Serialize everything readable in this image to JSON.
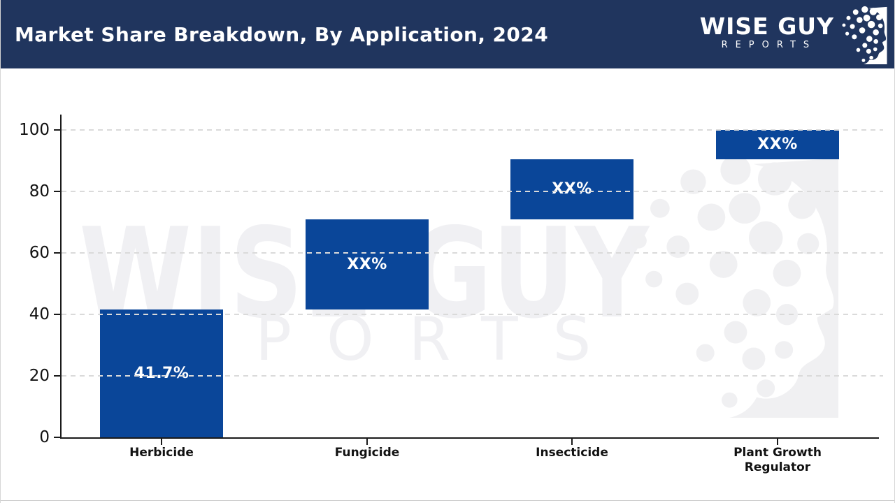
{
  "header": {
    "title": "Market Share Breakdown, By Application, 2024",
    "logo": {
      "line1": "WISE GUY",
      "line2": "REPORTS"
    }
  },
  "watermark": {
    "line1": "WISE GUY",
    "line2": "REPORTS"
  },
  "colors": {
    "header_bg": "#20355e",
    "bar": "#0a4699",
    "bar_label": "#ffffff",
    "grid": "#dadada",
    "axis": "#1a1a1a",
    "watermark": "#f0f0f3",
    "title_text": "#ffffff"
  },
  "chart_data": {
    "type": "bar",
    "subtype": "waterfall",
    "title": "Market Share Breakdown, By Application, 2024",
    "xlabel": "",
    "ylabel": "",
    "ylim": [
      0,
      104
    ],
    "y_ticks": [
      0,
      20,
      40,
      60,
      80,
      100
    ],
    "grid": "horizontal-dashed",
    "legend": "none",
    "categories": [
      "Herbicide",
      "Fungicide",
      "Insecticide",
      "Plant Growth Regulator"
    ],
    "segments": [
      {
        "category": "Herbicide",
        "label": "41.7%",
        "start": 0,
        "end": 41.7
      },
      {
        "category": "Fungicide",
        "label": "XX%",
        "start": 41.7,
        "end": 71.0
      },
      {
        "category": "Insecticide",
        "label": "XX%",
        "start": 71.0,
        "end": 90.5
      },
      {
        "category": "Plant Growth Regulator",
        "label": "XX%",
        "start": 90.5,
        "end": 100.0
      }
    ]
  }
}
